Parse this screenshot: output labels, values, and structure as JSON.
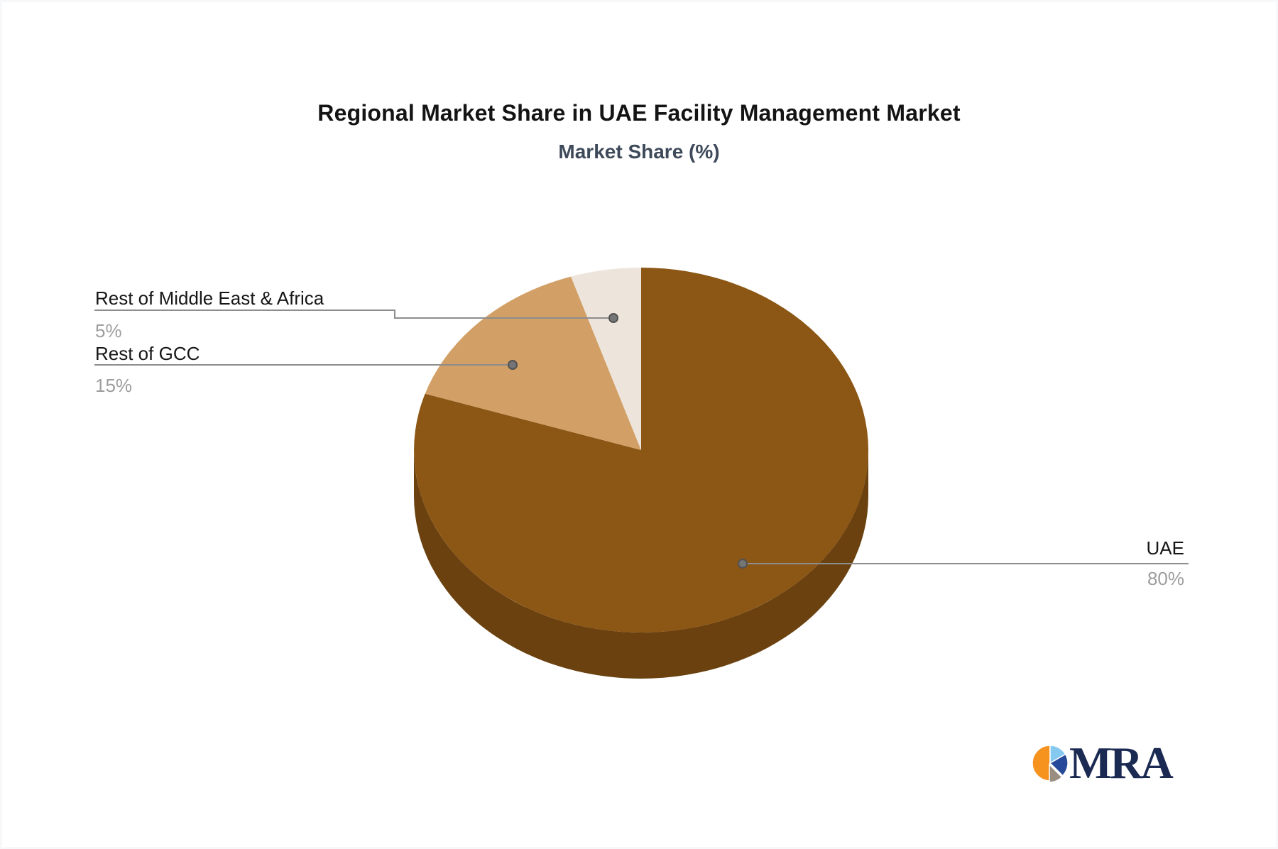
{
  "chart_data": {
    "type": "pie",
    "title": "Regional Market Share in UAE Facility Management Market",
    "subtitle": "Market Share (%)",
    "unit": "%",
    "effect_3d": true,
    "start_angle_deg": 0,
    "direction": "clockwise",
    "legend_position": "none (callout labels with leader lines)",
    "slices": [
      {
        "label": "UAE",
        "value": 80,
        "value_label": "80%",
        "color": "#8C5615",
        "side_color": "#6B420F"
      },
      {
        "label": "Rest of GCC",
        "value": 15,
        "value_label": "15%",
        "color": "#D2A066"
      },
      {
        "label": "Rest of Middle East & Africa",
        "value": 5,
        "value_label": "5%",
        "color": "#EDE4DB"
      }
    ]
  },
  "colors": {
    "title_text": "#141414",
    "subtitle_text": "#3e4a5a",
    "callout_label_text": "#161616",
    "callout_value_text": "#9e9e9e",
    "leader_line": "#8d8d8d",
    "leader_dot_fill": "#757575",
    "leader_dot_ring": "#525252",
    "background": "#ffffff"
  },
  "logo": {
    "text": "MRA",
    "text_color": "#1b2a52",
    "icon_colors": {
      "orange": "#F6921E",
      "light_blue": "#85C8F0",
      "navy": "#26499A",
      "taupe": "#9A8E81"
    }
  }
}
